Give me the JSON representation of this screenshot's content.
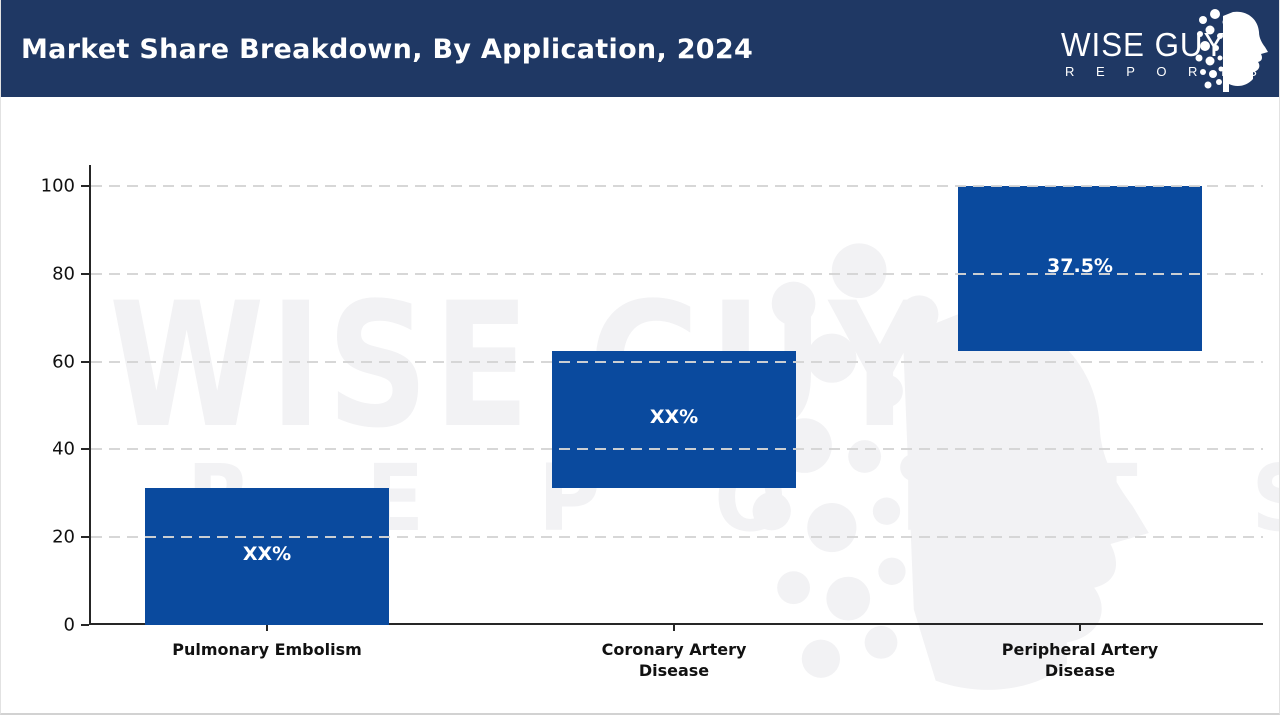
{
  "header": {
    "title": "Market Share Breakdown, By Application, 2024",
    "logo": {
      "line1": "WISE GUY",
      "line2": "R E P O R T S"
    }
  },
  "watermark": {
    "line1": "WISE GUY",
    "line2": "R E P O R T S"
  },
  "chart_data": {
    "type": "bar",
    "subtype": "floating-stacked-segments",
    "title": "Market Share Breakdown, By Application, 2024",
    "categories": [
      "Pulmonary Embolism",
      "Coronary Artery Disease",
      "Peripheral Artery Disease"
    ],
    "category_label_lines": [
      [
        "Pulmonary Embolism"
      ],
      [
        "Coronary Artery",
        "Disease"
      ],
      [
        "Peripheral Artery",
        "Disease"
      ]
    ],
    "bars": [
      {
        "category": "Pulmonary Embolism",
        "start": 0,
        "end": 31.25,
        "label": "XX%"
      },
      {
        "category": "Coronary Artery Disease",
        "start": 31.25,
        "end": 62.5,
        "label": "XX%"
      },
      {
        "category": "Peripheral Artery Disease",
        "start": 62.5,
        "end": 100,
        "label": "37.5%"
      }
    ],
    "ylim": [
      0,
      105
    ],
    "yticks": [
      0,
      20,
      40,
      60,
      80,
      100
    ],
    "grid": "dashed-horizontal",
    "legend": "none",
    "colors": {
      "bar": "#0a4a9e",
      "grid": "#d5d5d5",
      "axis": "#262626",
      "header_bg": "#1f3864",
      "bar_label_text": "#ffffff",
      "watermark": "#f2f2f4"
    }
  }
}
